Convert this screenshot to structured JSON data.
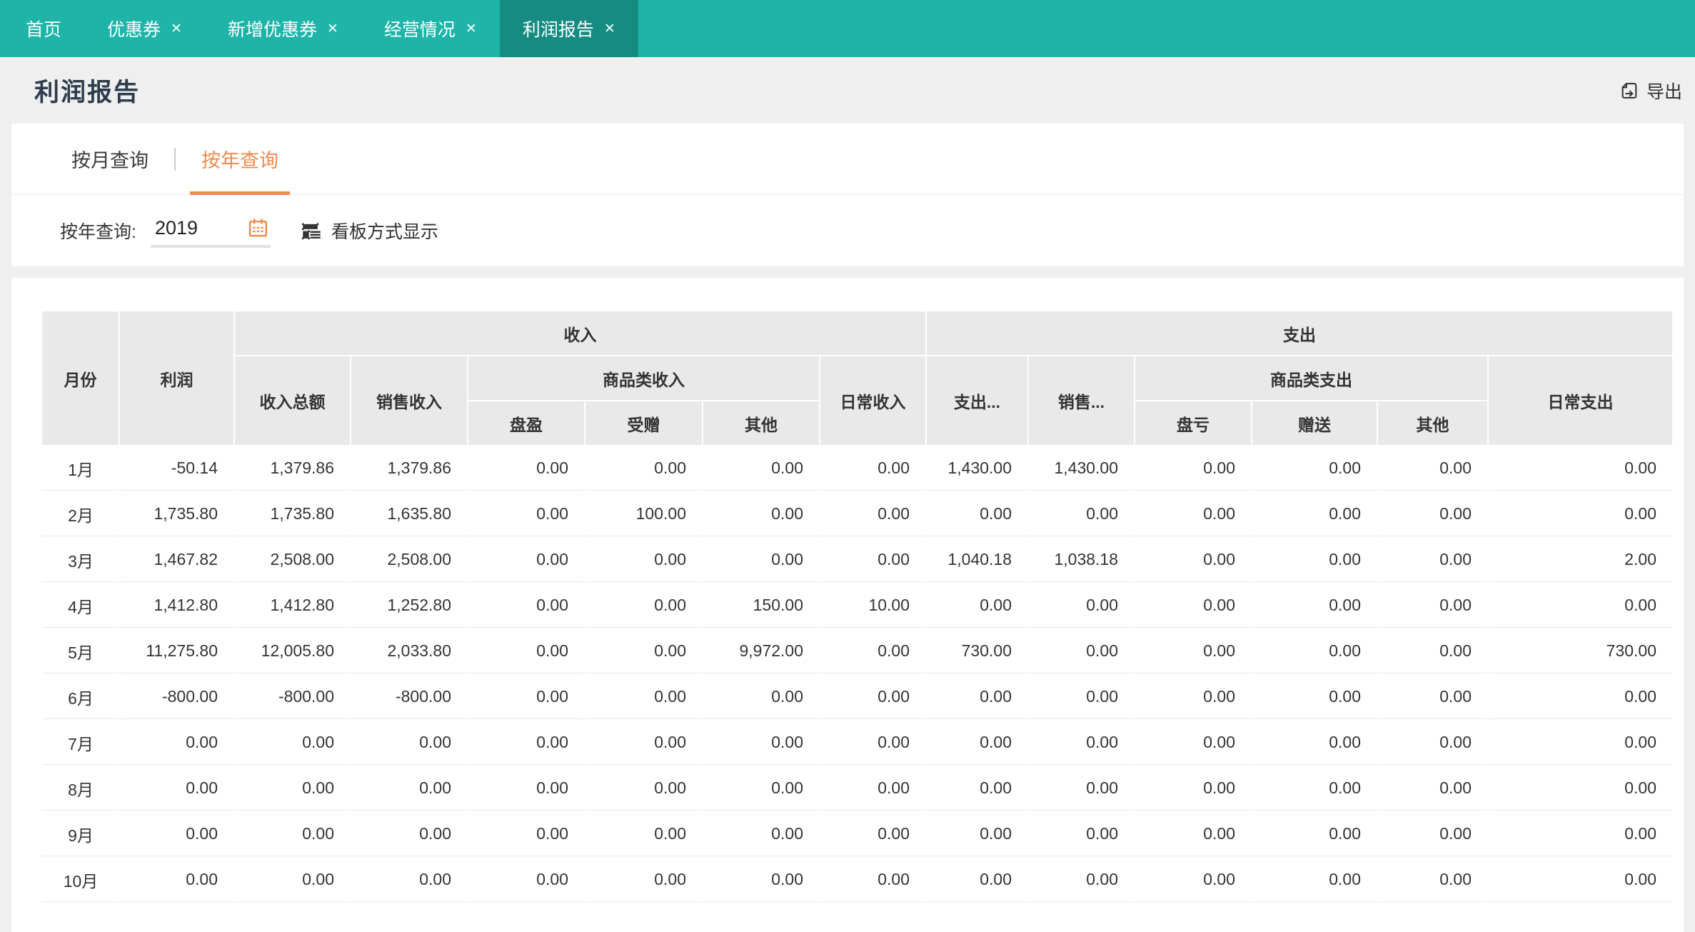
{
  "colors": {
    "topbar_teal": "#1eb4a8",
    "active_tab_teal": "#168b81",
    "accent_orange": "#f08a4d",
    "page_background": "#efefef",
    "header_cell_gray": "#e9e9e9"
  },
  "icons": {
    "close_glyph": "✕",
    "names": [
      "close-icon",
      "export-icon",
      "calendar-icon",
      "board-icon"
    ]
  },
  "top_bar": {
    "tabs": [
      {
        "label": "首页",
        "closable": false,
        "active": false
      },
      {
        "label": "优惠券",
        "closable": true,
        "active": false
      },
      {
        "label": "新增优惠券",
        "closable": true,
        "active": false
      },
      {
        "label": "经营情况",
        "closable": true,
        "active": false
      },
      {
        "label": "利润报告",
        "closable": true,
        "active": true
      }
    ]
  },
  "header": {
    "title": "利润报告",
    "export_label": "导出"
  },
  "query_tabs": {
    "by_month": "按月查询",
    "by_year": "按年查询"
  },
  "filter": {
    "label": "按年查询:",
    "year_value": "2019",
    "board_label": "看板方式显示"
  },
  "table": {
    "group_income": "收入",
    "group_expense": "支出",
    "col_month": "月份",
    "col_profit": "利润",
    "col_income_total": "收入总额",
    "col_sales_income": "销售收入",
    "group_goods_income": "商品类收入",
    "col_surplus": "盘盈",
    "col_gift_received": "受赠",
    "col_other_income": "其他",
    "col_daily_income": "日常收入",
    "col_expense_total": "支出...",
    "col_sales_expense": "销售...",
    "group_goods_expense": "商品类支出",
    "col_loss": "盘亏",
    "col_gift_given": "赠送",
    "col_other_expense": "其他",
    "col_daily_expense": "日常支出",
    "rows": [
      [
        "1月",
        "-50.14",
        "1,379.86",
        "1,379.86",
        "0.00",
        "0.00",
        "0.00",
        "0.00",
        "1,430.00",
        "1,430.00",
        "0.00",
        "0.00",
        "0.00",
        "0.00"
      ],
      [
        "2月",
        "1,735.80",
        "1,735.80",
        "1,635.80",
        "0.00",
        "100.00",
        "0.00",
        "0.00",
        "0.00",
        "0.00",
        "0.00",
        "0.00",
        "0.00",
        "0.00"
      ],
      [
        "3月",
        "1,467.82",
        "2,508.00",
        "2,508.00",
        "0.00",
        "0.00",
        "0.00",
        "0.00",
        "1,040.18",
        "1,038.18",
        "0.00",
        "0.00",
        "0.00",
        "2.00"
      ],
      [
        "4月",
        "1,412.80",
        "1,412.80",
        "1,252.80",
        "0.00",
        "0.00",
        "150.00",
        "10.00",
        "0.00",
        "0.00",
        "0.00",
        "0.00",
        "0.00",
        "0.00"
      ],
      [
        "5月",
        "11,275.80",
        "12,005.80",
        "2,033.80",
        "0.00",
        "0.00",
        "9,972.00",
        "0.00",
        "730.00",
        "0.00",
        "0.00",
        "0.00",
        "0.00",
        "730.00"
      ],
      [
        "6月",
        "-800.00",
        "-800.00",
        "-800.00",
        "0.00",
        "0.00",
        "0.00",
        "0.00",
        "0.00",
        "0.00",
        "0.00",
        "0.00",
        "0.00",
        "0.00"
      ],
      [
        "7月",
        "0.00",
        "0.00",
        "0.00",
        "0.00",
        "0.00",
        "0.00",
        "0.00",
        "0.00",
        "0.00",
        "0.00",
        "0.00",
        "0.00",
        "0.00"
      ],
      [
        "8月",
        "0.00",
        "0.00",
        "0.00",
        "0.00",
        "0.00",
        "0.00",
        "0.00",
        "0.00",
        "0.00",
        "0.00",
        "0.00",
        "0.00",
        "0.00"
      ],
      [
        "9月",
        "0.00",
        "0.00",
        "0.00",
        "0.00",
        "0.00",
        "0.00",
        "0.00",
        "0.00",
        "0.00",
        "0.00",
        "0.00",
        "0.00",
        "0.00"
      ],
      [
        "10月",
        "0.00",
        "0.00",
        "0.00",
        "0.00",
        "0.00",
        "0.00",
        "0.00",
        "0.00",
        "0.00",
        "0.00",
        "0.00",
        "0.00",
        "0.00"
      ]
    ]
  }
}
